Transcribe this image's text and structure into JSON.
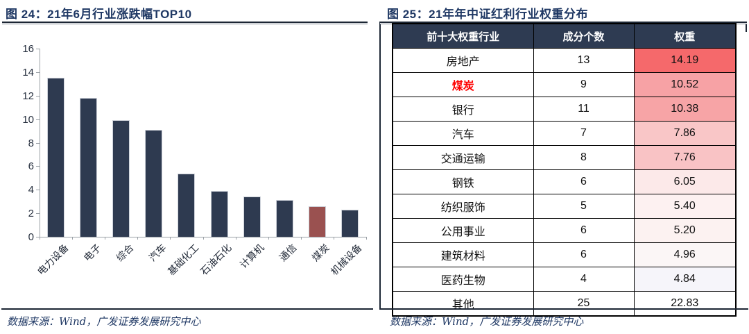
{
  "left_figure": {
    "title": "图 24：21年6月行业涨跌幅TOP10",
    "source": "数据来源：Wind，广发证券发展研究中心"
  },
  "right_figure": {
    "title": "图 25：21年年中证红利行业权重分布",
    "source": "数据来源：Wind，广发证券发展研究中心"
  },
  "colors": {
    "title_navy": "#1f3864",
    "bar_navy": "#2e3a50",
    "bar_highlight_red": "#9a5150",
    "table_header_bg": "#2e3b52",
    "highlight_text_red": "#fe0000",
    "axis_gray": "#9aa0a6"
  },
  "chart_data": [
    {
      "type": "bar",
      "title": "21年6月行业涨跌幅TOP10",
      "categories": [
        "电力设备",
        "电子",
        "综合",
        "汽车",
        "基础化工",
        "石油石化",
        "计算机",
        "通信",
        "煤炭",
        "机械设备"
      ],
      "values": [
        13.5,
        11.8,
        9.9,
        9.1,
        5.4,
        3.9,
        3.4,
        3.1,
        2.6,
        2.3
      ],
      "xlabel": "",
      "ylabel": "",
      "ylim": [
        0,
        16
      ],
      "ytick_step": 2,
      "grid": false,
      "legend": false,
      "bar_color": "#2e3a50",
      "highlight": {
        "index": 8,
        "category": "煤炭",
        "color": "#9a5150"
      }
    },
    {
      "type": "table",
      "title": "21年年中证红利行业权重分布",
      "columns": [
        "前十大权重行业",
        "成分个数",
        "权重"
      ],
      "rows": [
        {
          "industry": "房地产",
          "count": 13,
          "weight": "14.19",
          "weight_bg": "#f5696b",
          "highlight": false
        },
        {
          "industry": "煤炭",
          "count": 9,
          "weight": "10.52",
          "weight_bg": "#f7a2a5",
          "highlight": true
        },
        {
          "industry": "银行",
          "count": 11,
          "weight": "10.38",
          "weight_bg": "#f7a4a6",
          "highlight": false
        },
        {
          "industry": "汽车",
          "count": 7,
          "weight": "7.86",
          "weight_bg": "#f9c6c7",
          "highlight": false
        },
        {
          "industry": "交通运输",
          "count": 8,
          "weight": "7.76",
          "weight_bg": "#f9c3c5",
          "highlight": false
        },
        {
          "industry": "钢铁",
          "count": 6,
          "weight": "6.05",
          "weight_bg": "#fce9e9",
          "highlight": false
        },
        {
          "industry": "纺织服饰",
          "count": 5,
          "weight": "5.40",
          "weight_bg": "#fdf1f1",
          "highlight": false
        },
        {
          "industry": "公用事业",
          "count": 6,
          "weight": "5.20",
          "weight_bg": "#fcf2f1",
          "highlight": false
        },
        {
          "industry": "建筑材料",
          "count": 6,
          "weight": "4.96",
          "weight_bg": "#fbf6f6",
          "highlight": false
        },
        {
          "industry": "医药生物",
          "count": 4,
          "weight": "4.84",
          "weight_bg": "#f6f5fa",
          "highlight": false
        },
        {
          "industry": "其他",
          "count": 25,
          "weight": "22.83",
          "weight_bg": "#ffffff",
          "highlight": false
        }
      ]
    }
  ]
}
